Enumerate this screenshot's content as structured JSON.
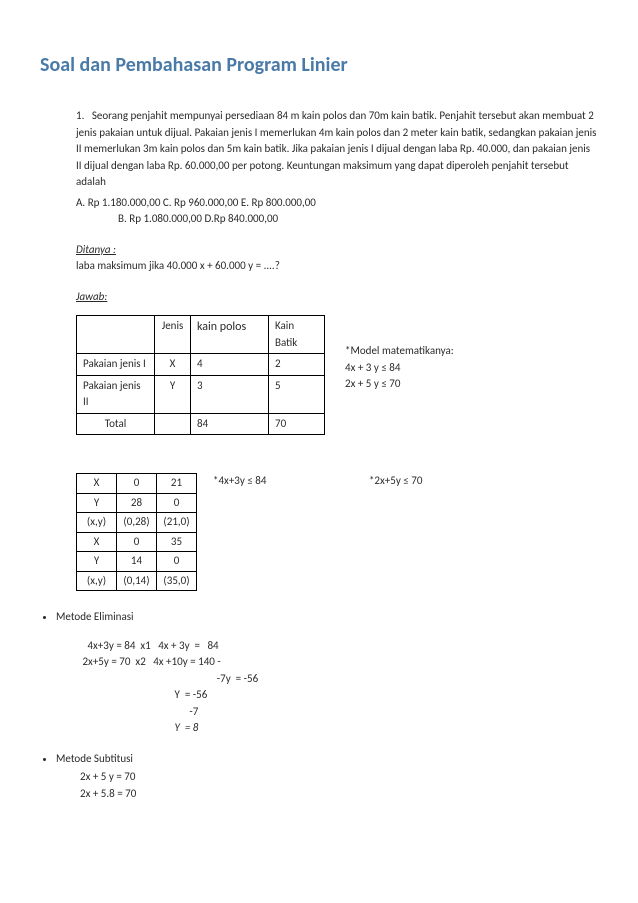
{
  "title": "Soal dan Pembahasan Program Linier",
  "problem": {
    "number": "1.",
    "text": "Seorang penjahit mempunyai persediaan 84 m kain polos dan 70m kain batik. Penjahit tersebut akan membuat 2 jenis pakaian untuk dijual. Pakaian jenis I memerlukan 4m kain polos dan 2 meter kain batik, sedangkan pakaian jenis II memerlukan 3m kain polos dan 5m kain batik. Jika pakaian jenis I dijual dengan laba Rp. 40.000, dan pakaian jenis II dijual dengan laba Rp. 60.000,00 per potong. Keuntungan maksimum yang dapat diperoleh penjahit tersebut adalah",
    "choices_line1": "A. Rp 1.180.000,00       C. Rp 960.000,00          E. Rp 800.000,00",
    "choices_line2": "B. Rp 1.080.000,00       D.Rp 840.000,00"
  },
  "asked": {
    "label": "Ditanya :",
    "text": "laba maksimum jika 40.000 x + 60.000 y = ....?"
  },
  "answer_label": "Jawab:",
  "table1": {
    "headers": [
      "",
      "Jenis",
      "kain polos",
      "Kain Batik"
    ],
    "rows": [
      [
        "Pakaian jenis I",
        "X",
        "4",
        "2"
      ],
      [
        "Pakaian jenis II",
        "Y",
        "3",
        "5"
      ],
      [
        "Total",
        "",
        "84",
        "70"
      ]
    ]
  },
  "model": {
    "label": "*Model matematikanya:",
    "eq1": "4x + 3 y ≤ 84",
    "eq2": "2x + 5 y ≤ 70"
  },
  "table2": {
    "rows": [
      [
        "X",
        "0",
        "21"
      ],
      [
        "Y",
        "28",
        "0"
      ],
      [
        "(x,y)",
        "(0,28)",
        "(21,0)"
      ],
      [
        "X",
        "0",
        "35"
      ],
      [
        "Y",
        "14",
        "0"
      ],
      [
        "(x,y)",
        "(0,14)",
        "(35,0)"
      ]
    ],
    "label1": "*4x+3y ≤ 84",
    "label2": "*2x+5y ≤ 70"
  },
  "elim": {
    "title": "Metode Eliminasi",
    "l1": "   4x+3y = 84  x1   4x + 3y  =   84",
    "l2": " 2x+5y = 70  x2   4x +10y = 140 -",
    "l3": "                                                       -7y  = -56",
    "l4": "                                      Y  = -56",
    "l5": "                                            -7",
    "l6": "                                      Y  = 8"
  },
  "sub": {
    "title": "Metode Subtitusi",
    "l1": "2x + 5 y = 70",
    "l2": "2x + 5.8 = 70"
  }
}
